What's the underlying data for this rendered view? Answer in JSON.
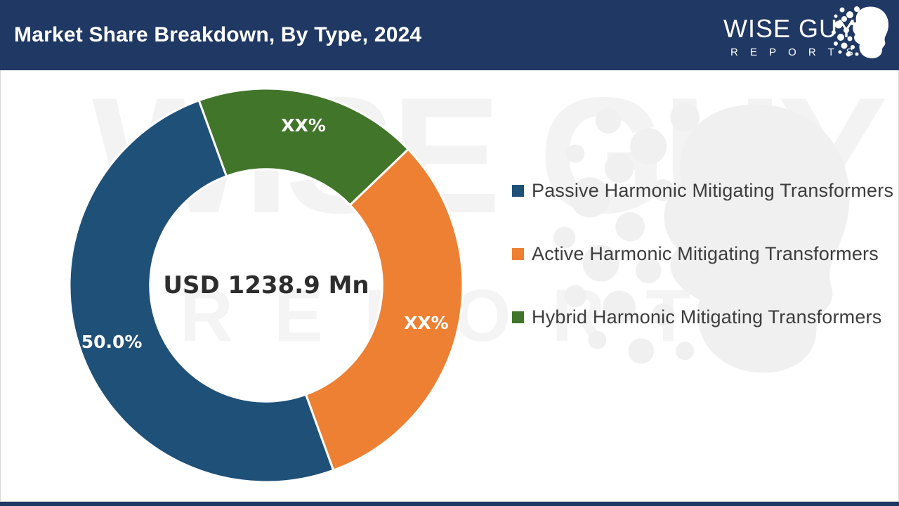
{
  "header": {
    "title": "Market Share Breakdown, By Type, 2024",
    "bg_color": "#203864",
    "logo": {
      "line1": "WISE GUY",
      "line2": "R E P O R T S"
    }
  },
  "watermark": {
    "line1": "WISE GUY",
    "line2": "REPORTS"
  },
  "chart_data": {
    "type": "pie",
    "title": "Market Share Breakdown, By Type, 2024",
    "center_label": "USD 1238.9 Mn",
    "donut_hole_ratio": 0.59,
    "start_angle_deg": 110,
    "direction": "counterclockwise",
    "legend_position": "right",
    "slices": [
      {
        "label": "Passive Harmonic Mitigating Transformers",
        "display_value": "50.0%",
        "visual_fraction": 0.5,
        "color": "#1F5078"
      },
      {
        "label": "Active Harmonic Mitigating Transformers",
        "display_value": "XX%",
        "visual_fraction": 0.316,
        "color": "#EE8034"
      },
      {
        "label": "Hybrid Harmonic Mitigating Transformers",
        "display_value": "XX%",
        "visual_fraction": 0.184,
        "color": "#41752A"
      }
    ]
  },
  "footer": {
    "bar_color": "#203864"
  }
}
